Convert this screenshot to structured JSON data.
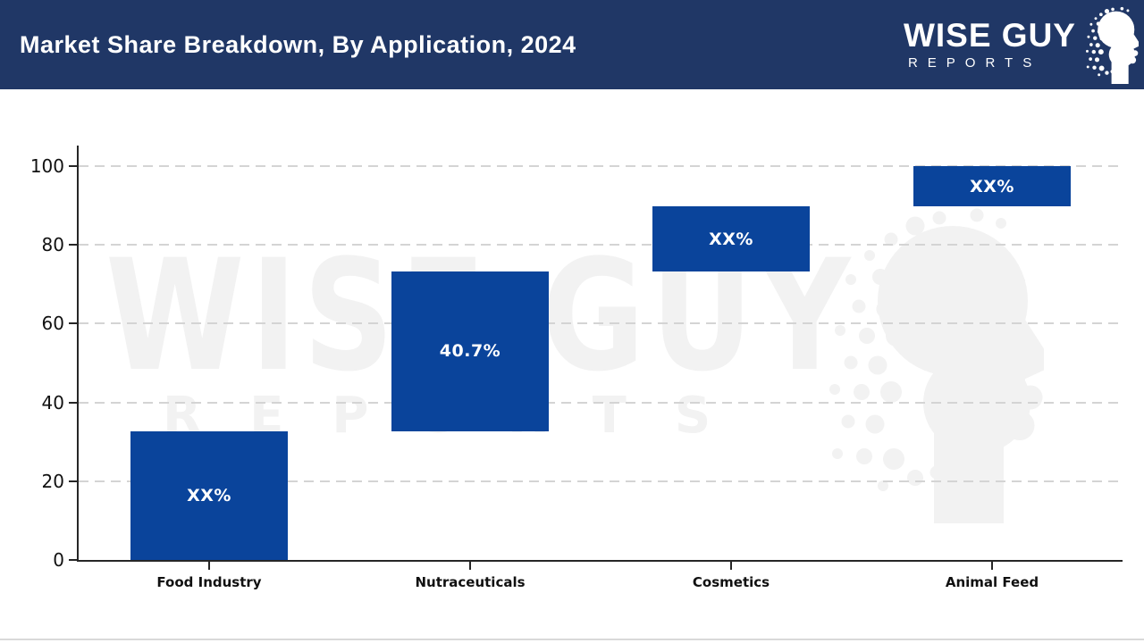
{
  "header": {
    "title": "Market Share Breakdown, By Application, 2024",
    "bg_color": "#203766",
    "logo": {
      "wordmark": "WISE GUY",
      "subtext": "REPORTS"
    }
  },
  "watermark": {
    "line1": "WISE GUY",
    "line2": "REPORTS"
  },
  "chart_data": {
    "type": "bar",
    "subtype": "floating-segment-waterfall",
    "title": "Market Share Breakdown, By Application, 2024",
    "categories": [
      "Food Industry",
      "Nutraceuticals",
      "Cosmetics",
      "Animal Feed"
    ],
    "bars": [
      {
        "category": "Food Industry",
        "start": 0,
        "end": 32.6,
        "value_label": "XX%"
      },
      {
        "category": "Nutraceuticals",
        "start": 32.6,
        "end": 73.3,
        "value_label": "40.7%"
      },
      {
        "category": "Cosmetics",
        "start": 73.3,
        "end": 89.7,
        "value_label": "XX%"
      },
      {
        "category": "Animal Feed",
        "start": 89.7,
        "end": 100,
        "value_label": "XX%"
      }
    ],
    "yticks": [
      0,
      20,
      40,
      60,
      80,
      100
    ],
    "ylim": [
      0,
      105
    ],
    "xlabel": "",
    "ylabel": "",
    "grid": "horizontal-dashed",
    "legend": "none",
    "bar_color": "#0a449b",
    "bar_label_color": "#ffffff",
    "axis_color": "#262626",
    "gridline_color": "#d4d4d4"
  }
}
